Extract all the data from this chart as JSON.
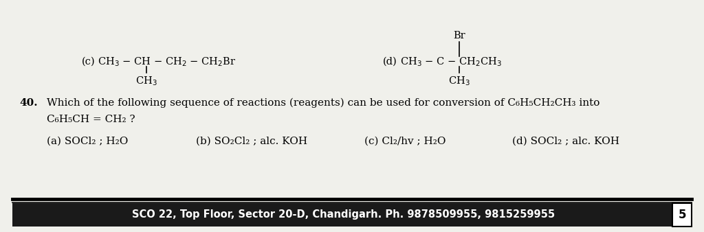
{
  "bg_color": "#f0f0eb",
  "footer_bg": "#1a1a1a",
  "footer_text": "SCO 22, Top Floor, Sector 20-D, Chandigarh. Ph. 9878509955, 9815259955",
  "footer_page": "5",
  "q40_number": "40.",
  "q40_text_main": "Which of the following sequence of reactions (reagents) can be used for conversion of C₆H₅CH₂CH₃ into",
  "q40_text_cont": "C₆H₅CH = CH₂ ?",
  "opt_a": "(a) SOCl₂ ; H₂O",
  "opt_b": "(b) SO₂Cl₂ ; alc. KOH",
  "opt_c": "(c) Cl₂/hv ; H₂O",
  "opt_d_ans": "(d) SOCl₂ ; alc. KOH",
  "font_size_main": 11,
  "font_size_footer": 10.5,
  "font_size_struct": 10.5
}
